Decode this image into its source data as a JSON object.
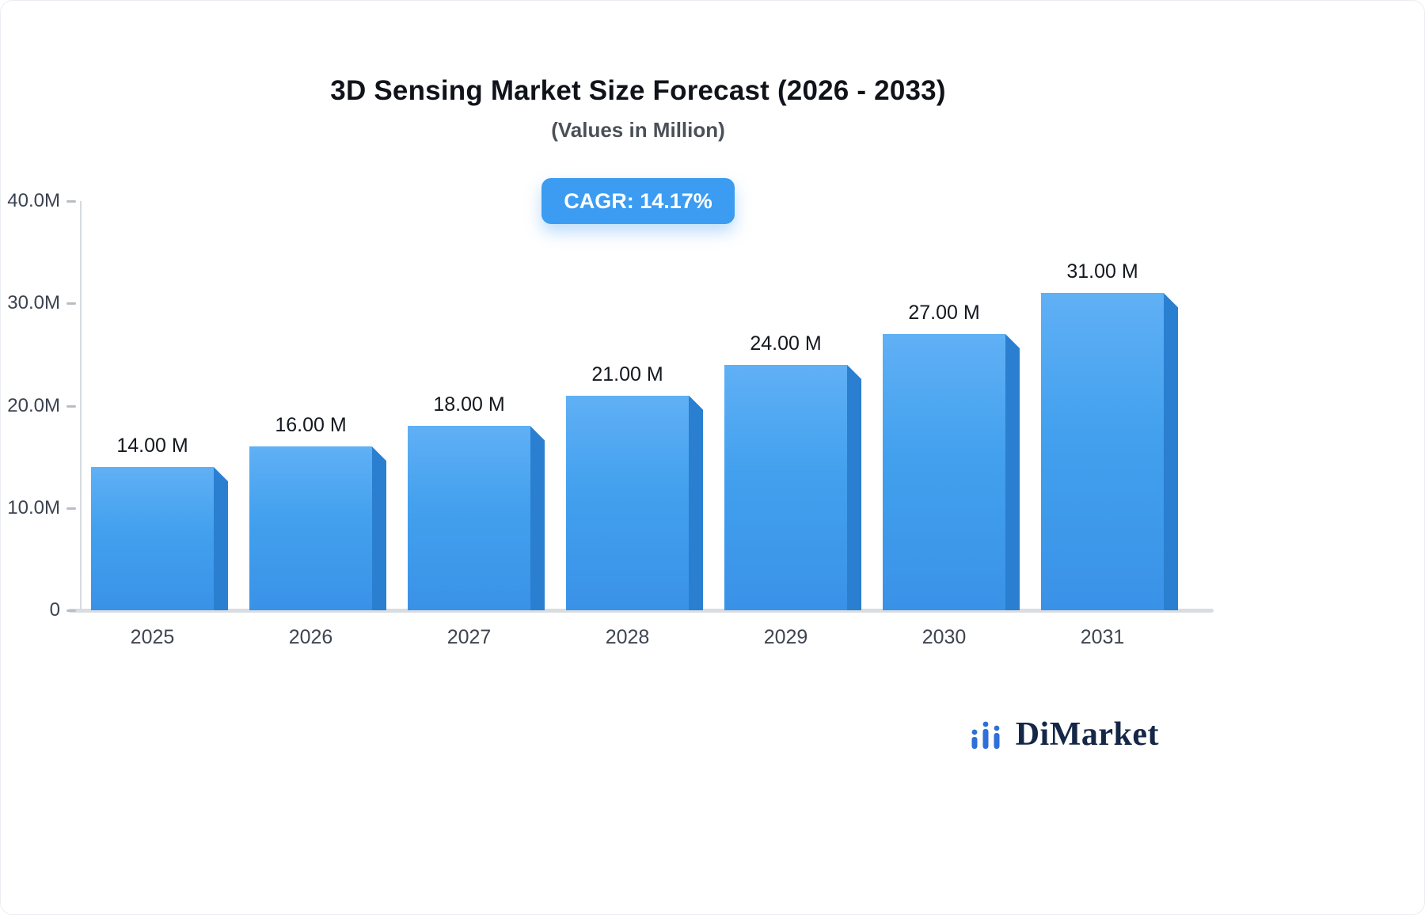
{
  "header": {
    "title": "3D Sensing Market Size Forecast (2026 - 2033)",
    "subtitle": "(Values in Million)",
    "badge_label": "CAGR: 14.17%"
  },
  "footer": {
    "logo_text": "DiMarket"
  },
  "colors": {
    "accent_blue": "#3b9cf1",
    "bar_front_top": "#60b0f5",
    "bar_front_bottom": "#3a92e7",
    "bar_side": "#2a7fd0",
    "logo_navy": "#152747",
    "logo_icon_blue": "#2e6fd8"
  },
  "chart_data": {
    "type": "bar",
    "title": "3D Sensing Market Size Forecast (2026 - 2033)",
    "subtitle": "(Values in Million)",
    "annotation": "CAGR: 14.17%",
    "categories": [
      "2025",
      "2026",
      "2027",
      "2028",
      "2029",
      "2030",
      "2031"
    ],
    "values": [
      14,
      16,
      18,
      21,
      24,
      27,
      31
    ],
    "value_labels": [
      "14.00 M",
      "16.00 M",
      "18.00 M",
      "21.00 M",
      "24.00 M",
      "27.00 M",
      "31.00 M"
    ],
    "xlabel": "",
    "ylabel": "",
    "ylim": [
      0,
      40
    ],
    "y_tick_values": [
      40,
      30,
      20,
      10,
      0
    ],
    "y_tick_labels": [
      "40.0M",
      "30.0M",
      "20.0M",
      "10.0M",
      "0"
    ],
    "grid": false,
    "legend": false
  }
}
